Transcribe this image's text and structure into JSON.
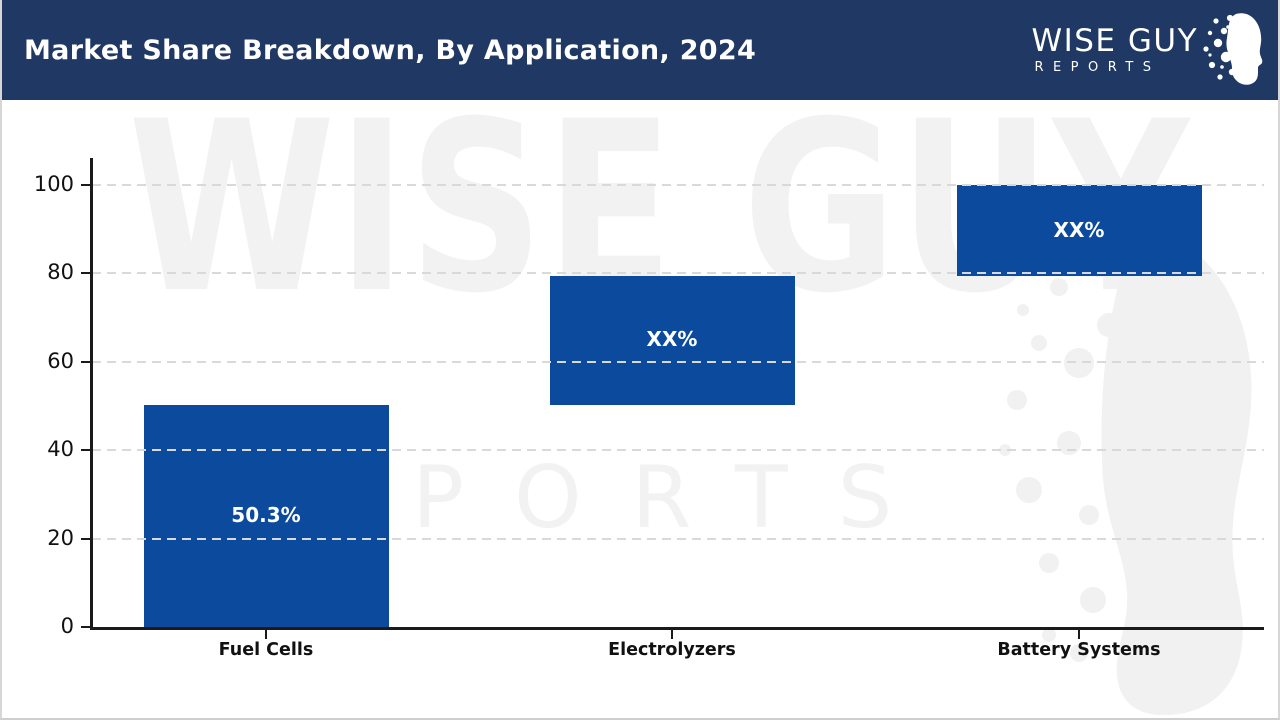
{
  "header": {
    "title": "Market Share Breakdown, By Application, 2024",
    "logo": {
      "line1": "WISE GUY",
      "line2": "REPORTS"
    }
  },
  "watermark": {
    "line1": "WISE GUY",
    "line2": "REPORTS"
  },
  "chart_data": {
    "type": "bar",
    "subtype": "waterfall",
    "title": "Market Share Breakdown, By Application, 2024",
    "categories": [
      "Fuel Cells",
      "Electrolyzers",
      "Battery Systems"
    ],
    "bars": [
      {
        "category": "Fuel Cells",
        "start": 0,
        "end": 50.3,
        "label": "50.3%"
      },
      {
        "category": "Electrolyzers",
        "start": 50.3,
        "end": 79.4,
        "label": "XX%"
      },
      {
        "category": "Battery Systems",
        "start": 79.4,
        "end": 100,
        "label": "XX%"
      }
    ],
    "yticks": [
      0,
      20,
      40,
      60,
      80,
      100
    ],
    "ylim": [
      0,
      106
    ],
    "grid": "horizontal-dashed",
    "legend": "none",
    "bar_color": "#0c4a9e",
    "bar_label_color": "#ffffff"
  },
  "colors": {
    "header_bg": "#1f3864",
    "bar": "#0c4a9e",
    "grid": "#d9d9d9",
    "axis": "#1a1a1a",
    "watermark": "#f2f2f2"
  }
}
